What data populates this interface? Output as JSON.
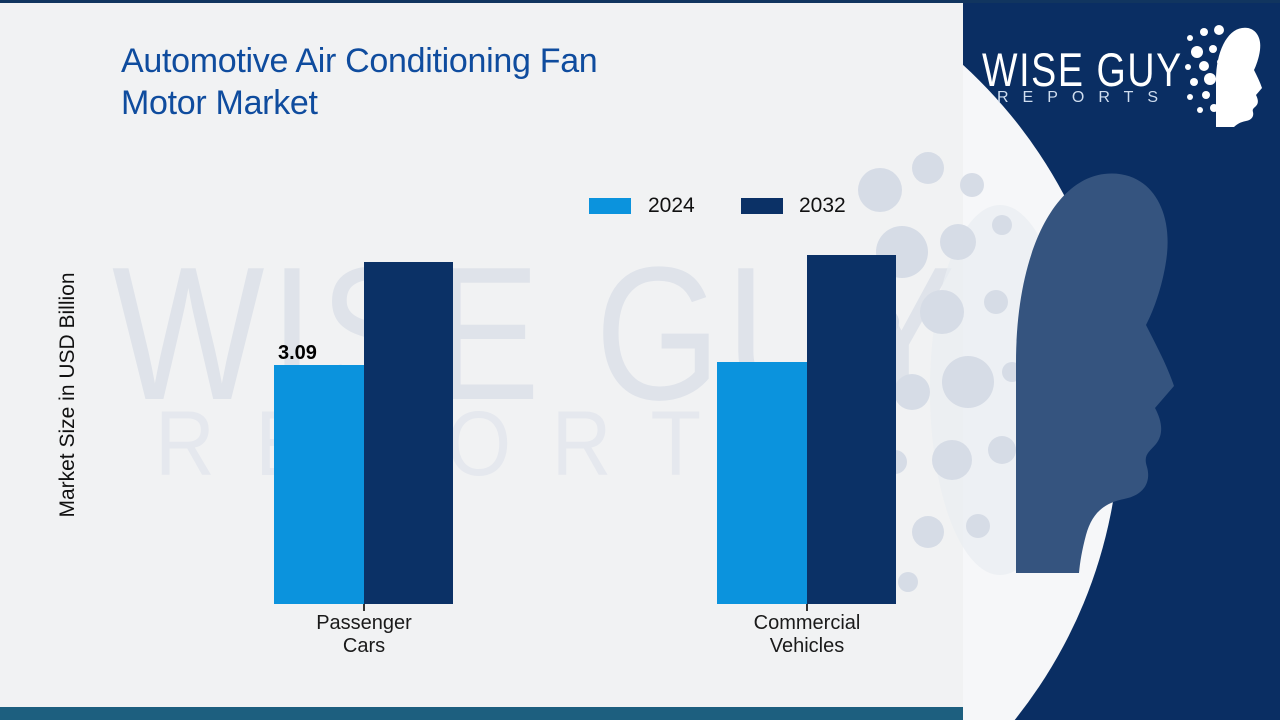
{
  "header": {
    "title": "Automotive Air Conditioning Fan Motor Market",
    "title_lines": [
      "Automotive Air Conditioning Fan",
      "Motor Market"
    ]
  },
  "brand": {
    "logo_text": "WISE GUY",
    "logo_subtext": "REPORTS",
    "watermark_text": "WISE GUY",
    "watermark_subtext": "REPORT",
    "band_color": "#0a2e63",
    "band_face_color": "#35547f",
    "teal_accent": "#1d5f7f",
    "title_color": "#0f4c9e"
  },
  "chart_data": {
    "type": "bar",
    "title": "Automotive Air Conditioning Fan Motor Market",
    "categories": [
      "Passenger Cars",
      "Commercial Vehicles"
    ],
    "series": [
      {
        "name": "2024",
        "color": "#0b93dd",
        "values": [
          3.09,
          3.13
        ]
      },
      {
        "name": "2032",
        "color": "#0b3166",
        "values": [
          4.43,
          4.51
        ]
      }
    ],
    "annotations": [
      {
        "series_index": 0,
        "category_index": 0,
        "text": "3.09"
      }
    ],
    "xlabel": "",
    "ylabel": "Market Size in USD Billion",
    "ylim": [
      0,
      5
    ],
    "grid": false,
    "legend_position": "top",
    "value_unit": "USD Billion"
  }
}
